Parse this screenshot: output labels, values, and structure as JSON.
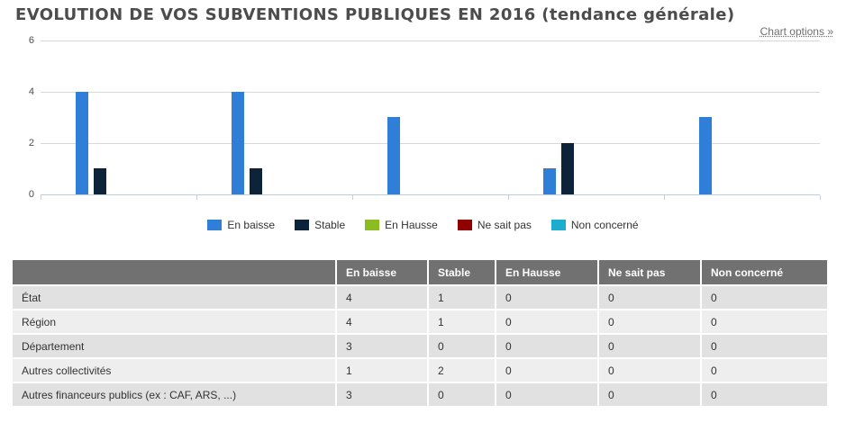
{
  "header": {
    "title": "EVOLUTION DE VOS SUBVENTIONS PUBLIQUES EN 2016 (tendance générale)",
    "chart_options_label": "Chart options »"
  },
  "chart_data": {
    "type": "bar",
    "title": "EVOLUTION DE VOS SUBVENTIONS PUBLIQUES EN 2016 (tendance générale)",
    "categories": [
      "État",
      "Région",
      "Département",
      "Autres collectivités",
      "Autres financeurs publics (ex : CAF, ARS, ...)"
    ],
    "series": [
      {
        "name": "En baisse",
        "color": "#2f7ed8",
        "values": [
          4,
          4,
          3,
          1,
          3
        ]
      },
      {
        "name": "Stable",
        "color": "#0d233a",
        "values": [
          1,
          1,
          0,
          2,
          0
        ]
      },
      {
        "name": "En Hausse",
        "color": "#8bbc21",
        "values": [
          0,
          0,
          0,
          0,
          0
        ]
      },
      {
        "name": "Ne sait pas",
        "color": "#910000",
        "values": [
          0,
          0,
          0,
          0,
          0
        ]
      },
      {
        "name": "Non concerné",
        "color": "#1aadce",
        "values": [
          0,
          0,
          0,
          0,
          0
        ]
      }
    ],
    "xlabel": "",
    "ylabel": "",
    "ylim": [
      0,
      6
    ],
    "yticks": [
      0,
      2,
      4,
      6
    ],
    "grid": true,
    "legend_position": "bottom",
    "x_tick_labels_shown": false
  },
  "table": {
    "columns": [
      "",
      "En baisse",
      "Stable",
      "En Hausse",
      "Ne sait pas",
      "Non concerné"
    ],
    "rows": [
      {
        "label": "État",
        "values": [
          4,
          1,
          0,
          0,
          0
        ]
      },
      {
        "label": "Région",
        "values": [
          4,
          1,
          0,
          0,
          0
        ]
      },
      {
        "label": "Département",
        "values": [
          3,
          0,
          0,
          0,
          0
        ]
      },
      {
        "label": "Autres collectivités",
        "values": [
          1,
          2,
          0,
          0,
          0
        ]
      },
      {
        "label": "Autres financeurs publics (ex : CAF, ARS, ...)",
        "values": [
          3,
          0,
          0,
          0,
          0
        ]
      }
    ]
  }
}
